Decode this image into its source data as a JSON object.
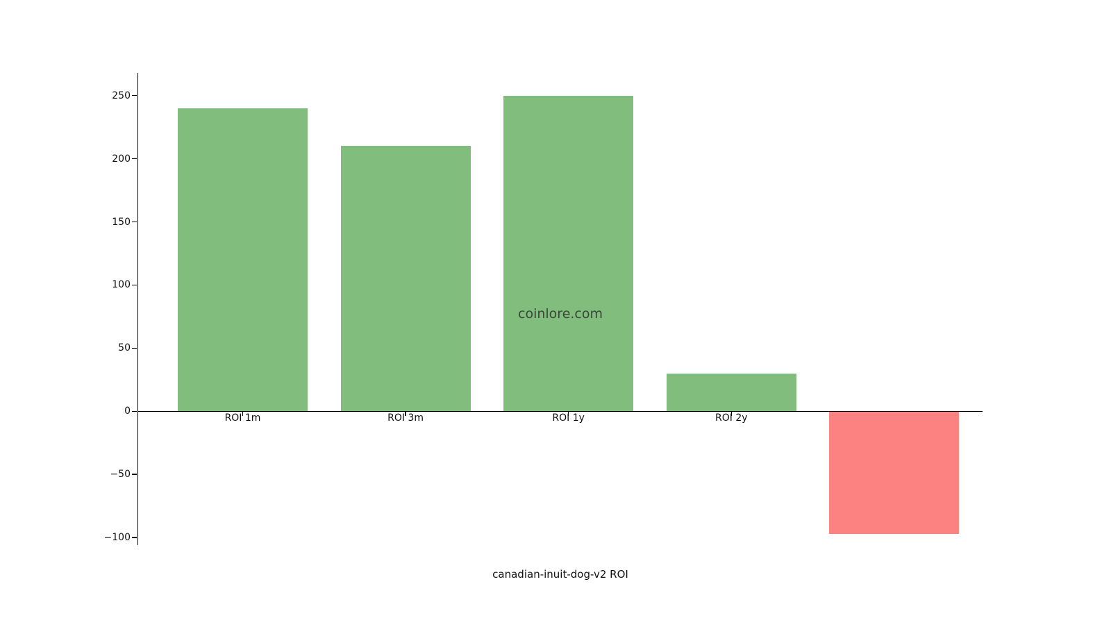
{
  "chart_data": {
    "type": "bar",
    "title": "canadian-inuit-dog-v2 ROI",
    "watermark": "coinlore.com",
    "categories": [
      "ROI 1m",
      "ROI 3m",
      "ROI 1y",
      "ROI 2y",
      ""
    ],
    "values": [
      240,
      210,
      250,
      30,
      -97
    ],
    "bar_colors": [
      "#81bd7d",
      "#81bd7d",
      "#81bd7d",
      "#81bd7d",
      "#fc8181"
    ],
    "positive_color": "#81bd7d",
    "negative_color": "#fc8181",
    "axis_color": "#000000",
    "yticks": [
      250,
      200,
      150,
      100,
      50,
      0,
      -50,
      -100
    ],
    "ylim": [
      -106,
      268
    ],
    "xlabel": "",
    "ylabel": "",
    "grid": false,
    "legend_position": "none"
  }
}
